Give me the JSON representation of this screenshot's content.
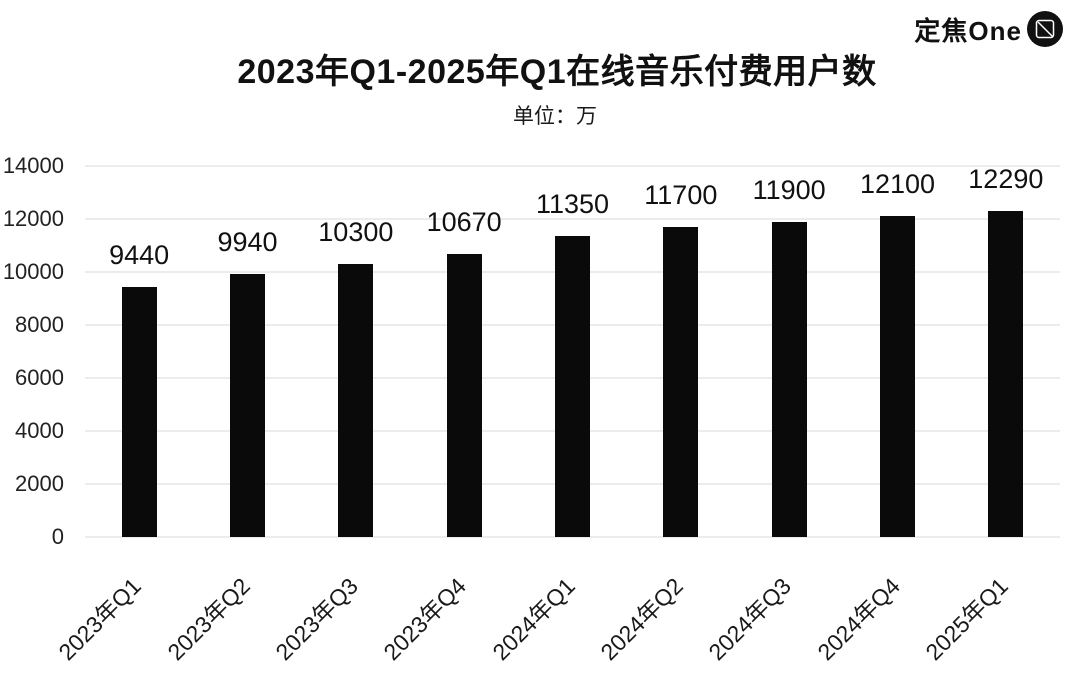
{
  "brand": {
    "name": "定焦One",
    "icon": "aperture-square-logo-icon"
  },
  "chart_data": {
    "type": "bar",
    "title": "2023年Q1-2025年Q1在线音乐付费用户数",
    "subtitle": "单位：万",
    "categories": [
      "2023年Q1",
      "2023年Q2",
      "2023年Q3",
      "2023年Q4",
      "2024年Q1",
      "2024年Q2",
      "2024年Q3",
      "2024年Q4",
      "2025年Q1"
    ],
    "values": [
      9440,
      9940,
      10300,
      10670,
      11350,
      11700,
      11900,
      12100,
      12290
    ],
    "xlabel": "",
    "ylabel": "",
    "ylim": [
      0,
      14000
    ],
    "yticks": [
      0,
      2000,
      4000,
      6000,
      8000,
      10000,
      12000,
      14000
    ],
    "grid": true,
    "legend": "none",
    "bar_color": "#0a0a0a",
    "grid_color": "#ececec",
    "text_color": "#111111",
    "background": "#ffffff"
  }
}
